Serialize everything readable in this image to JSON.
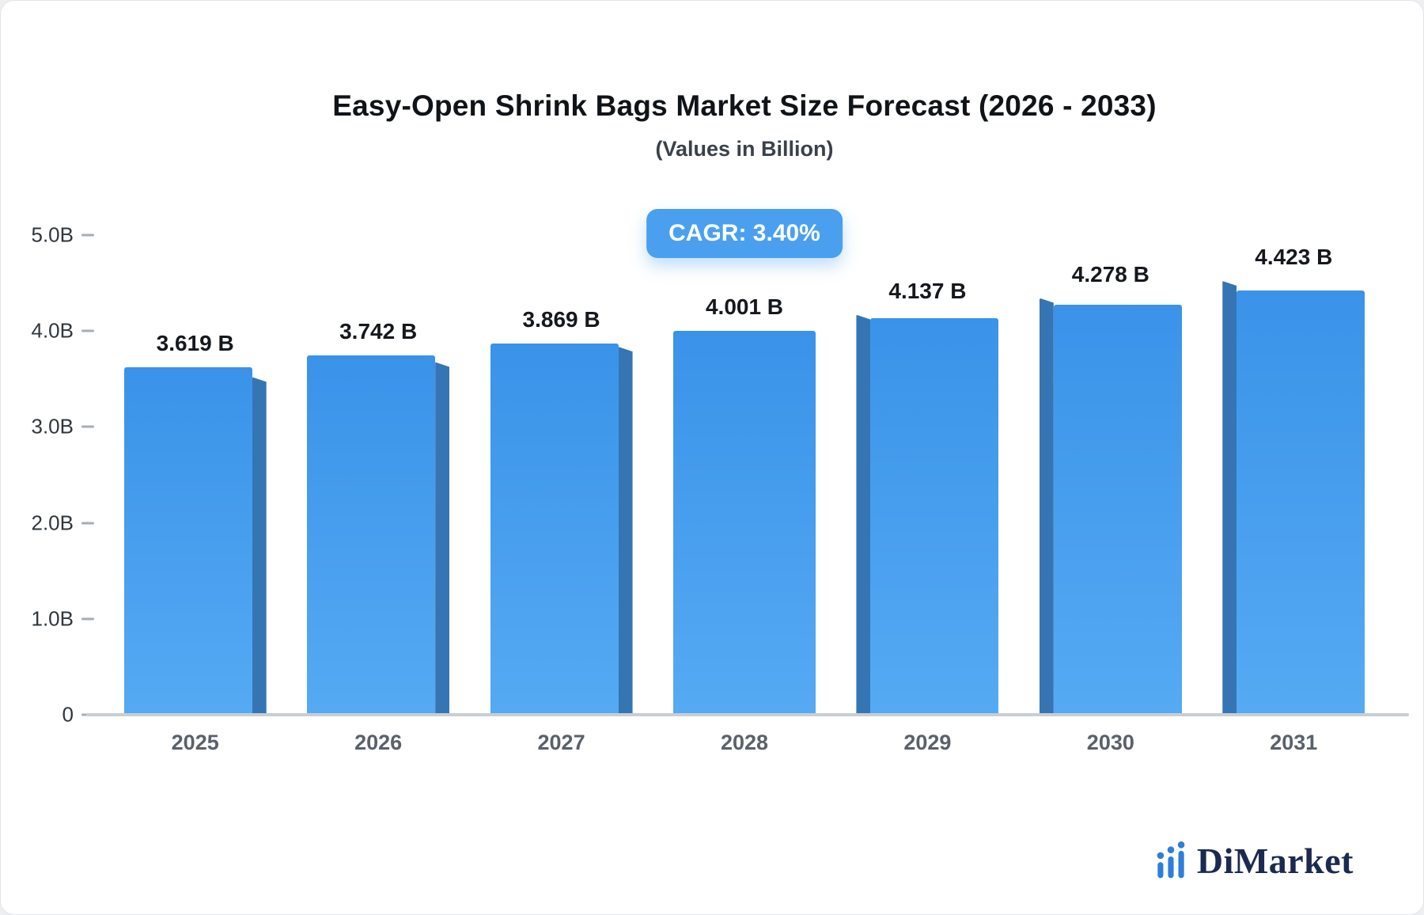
{
  "header": {
    "title": "Easy-Open Shrink Bags Market Size Forecast (2026 - 2033)",
    "subtitle": "(Values in Billion)"
  },
  "badge": {
    "label": "CAGR: 3.40%",
    "color": "#4aa0ef"
  },
  "chart_data": {
    "type": "bar",
    "title": "Easy-Open Shrink Bags Market Size Forecast (2026 - 2033)",
    "subtitle": "(Values in Billion)",
    "categories": [
      "2025",
      "2026",
      "2027",
      "2028",
      "2029",
      "2030",
      "2031"
    ],
    "values": [
      3.619,
      3.742,
      3.869,
      4.001,
      4.137,
      4.278,
      4.423
    ],
    "value_labels": [
      "3.619 B",
      "3.742 B",
      "3.869 B",
      "4.001 B",
      "4.137 B",
      "4.278 B",
      "4.423 B"
    ],
    "unit": "Billion",
    "ylim": [
      0,
      5
    ],
    "yticks": [
      {
        "value": 5,
        "label": "5.0B"
      },
      {
        "value": 4,
        "label": "4.0B"
      },
      {
        "value": 3,
        "label": "3.0B"
      },
      {
        "value": 2,
        "label": "2.0B"
      },
      {
        "value": 1,
        "label": "1.0B"
      },
      {
        "value": 0,
        "label": "0"
      }
    ],
    "grid": false,
    "legend": false,
    "bar_color_top": "#3a93e9",
    "bar_color_bottom": "#55aaf3",
    "bar_side_color": "#3575b4"
  },
  "branding": {
    "name": "DiMarket",
    "icon": "bar-chart-icon",
    "icon_color": "#2d7fd9",
    "text_color": "#1b2a50"
  }
}
